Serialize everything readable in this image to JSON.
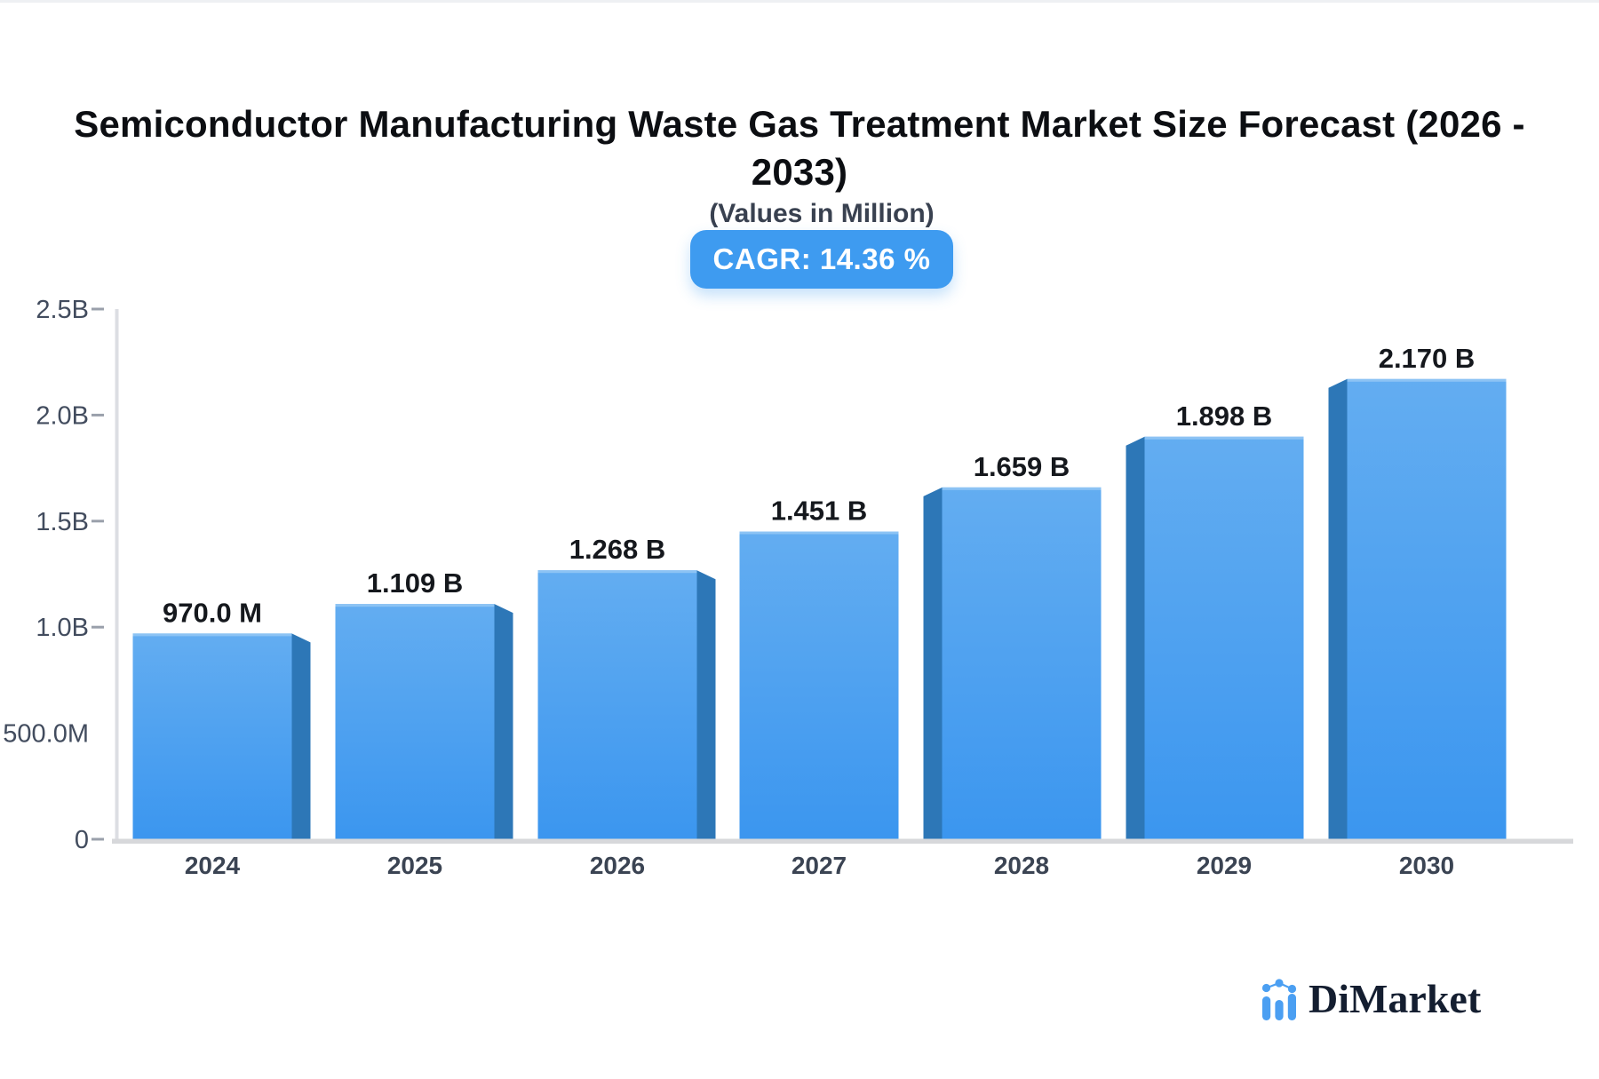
{
  "header": {
    "title_line1": "Semiconductor Manufacturing Waste Gas Treatment Market Size Forecast (2026 -",
    "title_line2": "2033)",
    "subtitle": "(Values in Million)",
    "cagr_badge": "CAGR: 14.36 %"
  },
  "footer": {
    "brand": "DiMarket"
  },
  "colors": {
    "accent": "#3E9BF0",
    "bar_top": "#63ADF1",
    "bar_bottom": "#3B96EF",
    "bar_side": "#2D77B7",
    "bar_top_edge": "#8CC3F4",
    "axis_line": "#DCDEE3",
    "baseline": "#D7D8DB",
    "tick_dash": "#9AA0AB",
    "tick_label": "#424C5E",
    "x_label": "#3B4453",
    "value_label": "#15181D",
    "logo_blue": "#4B9FF2"
  },
  "chart_data": {
    "type": "bar",
    "title": "Semiconductor Manufacturing Waste Gas Treatment Market Size Forecast (2026 - 2033)",
    "subtitle": "(Values in Million)",
    "cagr": "14.36 %",
    "categories": [
      "2024",
      "2025",
      "2026",
      "2027",
      "2028",
      "2029",
      "2030"
    ],
    "values_millions": [
      970,
      1109,
      1268,
      1451,
      1659,
      1898,
      2170
    ],
    "bar_labels": [
      "970.0 M",
      "1.109 B",
      "1.268 B",
      "1.451 B",
      "1.659 B",
      "1.898 B",
      "2.170 B"
    ],
    "ylim_millions": [
      0,
      2500
    ],
    "y_ticks": [
      {
        "label": "2.5B",
        "value": 2500,
        "dash": true
      },
      {
        "label": "2.0B",
        "value": 2000,
        "dash": true
      },
      {
        "label": "1.5B",
        "value": 1500,
        "dash": true
      },
      {
        "label": "1.0B",
        "value": 1000,
        "dash": true
      },
      {
        "label": "500.0M",
        "value": 500,
        "dash": false
      },
      {
        "label": "0",
        "value": 0,
        "dash": true
      }
    ],
    "grid": "off",
    "legend": "none"
  }
}
